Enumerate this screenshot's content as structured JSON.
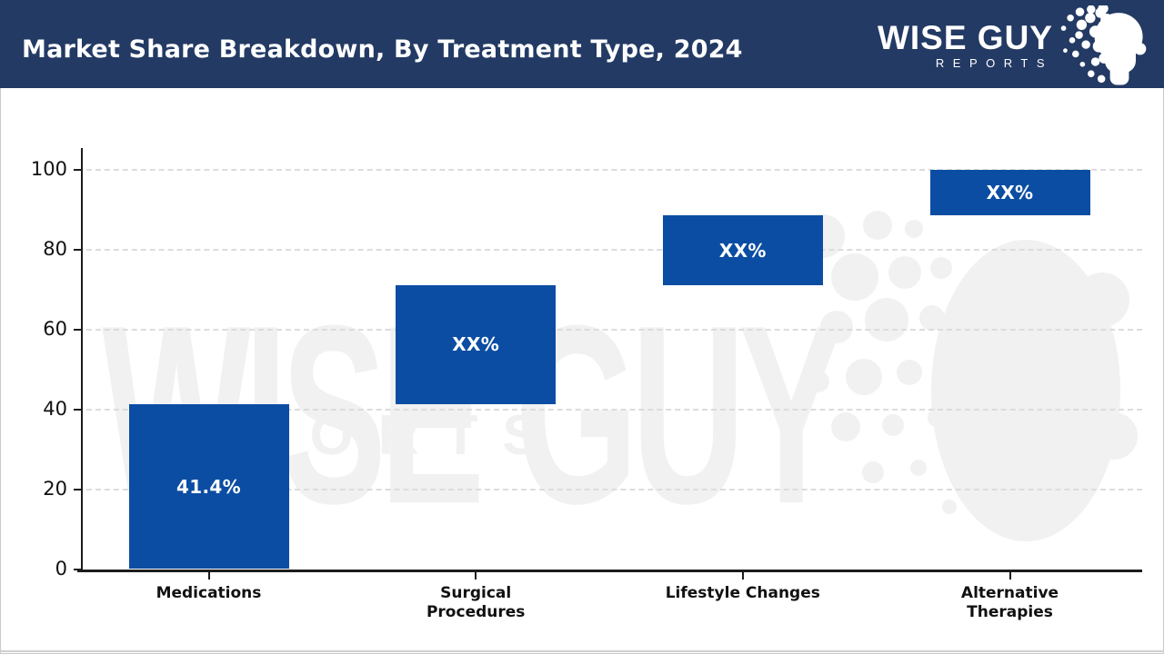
{
  "header": {
    "title": "Market Share Breakdown, By Treatment Type, 2024",
    "logo": {
      "line1": "WISE GUY",
      "line2": "REPORTS"
    }
  },
  "watermark": {
    "line1": "WISE GUY",
    "line2": "REPORTS"
  },
  "chart_data": {
    "type": "bar",
    "subtype": "waterfall",
    "title": "Market Share Breakdown, By Treatment Type, 2024",
    "categories": [
      "Medications",
      "Surgical Procedures",
      "Lifestyle Changes",
      "Alternative Therapies"
    ],
    "tick_labels": [
      "Medications",
      "Surgical\nProcedures",
      "Lifestyle Changes",
      "Alternative\nTherapies"
    ],
    "segments": [
      {
        "category": "Medications",
        "start": 0,
        "end": 41.4,
        "value_label": "41.4%"
      },
      {
        "category": "Surgical Procedures",
        "start": 41.4,
        "end": 71.0,
        "value_label": "XX%"
      },
      {
        "category": "Lifestyle Changes",
        "start": 71.0,
        "end": 88.6,
        "value_label": "XX%"
      },
      {
        "category": "Alternative Therapies",
        "start": 88.6,
        "end": 100.0,
        "value_label": "XX%"
      }
    ],
    "ylim": [
      0,
      100
    ],
    "yticks": [
      0,
      20,
      40,
      60,
      80,
      100
    ],
    "grid": "dashed-horizontal",
    "legend": "none",
    "xlabel": "",
    "ylabel": "",
    "bar_color": "#0b4da2",
    "bar_label_color": "#ffffff"
  },
  "colors": {
    "header_bg": "#233a64",
    "bar": "#0b4da2",
    "axis": "#1c1c1c",
    "gridline": "#dcdcdc",
    "watermark": "#f1f1f2"
  }
}
